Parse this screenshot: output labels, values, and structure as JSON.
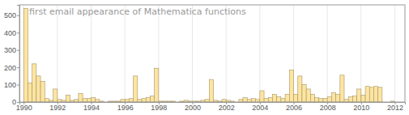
{
  "chart_data": {
    "type": "histogram",
    "title": "first email appearance of Mathematica functions",
    "bins": [
      1990,
      1990.25,
      1990.5,
      1990.75,
      1991,
      1991.25,
      1991.5,
      1991.75,
      1992,
      1992.25,
      1992.5,
      1992.75,
      1993,
      1993.25,
      1993.5,
      1993.75,
      1994,
      1994.25,
      1994.5,
      1994.75,
      1995,
      1995.25,
      1995.5,
      1995.75,
      1996,
      1996.25,
      1996.5,
      1996.75,
      1997,
      1997.25,
      1997.5,
      1997.75,
      1998,
      1998.25,
      1998.5,
      1998.75,
      1999,
      1999.25,
      1999.5,
      1999.75,
      2000,
      2000.25,
      2000.5,
      2000.75,
      2001,
      2001.25,
      2001.5,
      2001.75,
      2002,
      2002.25,
      2002.5,
      2002.75,
      2003,
      2003.25,
      2003.5,
      2003.75,
      2004,
      2004.25,
      2004.5,
      2004.75,
      2005,
      2005.25,
      2005.5,
      2005.75,
      2006,
      2006.25,
      2006.5,
      2006.75,
      2007,
      2007.25,
      2007.5,
      2007.75,
      2008,
      2008.25,
      2008.5,
      2008.75,
      2009,
      2009.25,
      2009.5,
      2009.75,
      2010,
      2010.25,
      2010.5,
      2010.75,
      2011,
      2011.25,
      2011.5,
      2011.75,
      2012
    ],
    "values": [
      540,
      110,
      220,
      150,
      120,
      20,
      10,
      75,
      15,
      10,
      40,
      10,
      15,
      50,
      20,
      20,
      25,
      15,
      5,
      0,
      5,
      5,
      5,
      15,
      15,
      20,
      150,
      15,
      20,
      25,
      35,
      195,
      5,
      5,
      5,
      5,
      0,
      5,
      10,
      5,
      5,
      5,
      10,
      15,
      130,
      10,
      5,
      15,
      10,
      5,
      0,
      15,
      25,
      15,
      20,
      15,
      65,
      20,
      25,
      45,
      30,
      20,
      45,
      185,
      45,
      150,
      100,
      75,
      45,
      25,
      20,
      20,
      30,
      55,
      45,
      155,
      15,
      30,
      35,
      75,
      40,
      90,
      85,
      90,
      85,
      0,
      0,
      5
    ],
    "color": "#fde4a0",
    "xlim": [
      1989.75,
      2012.6
    ],
    "xticks": [
      1990,
      1992,
      1994,
      1996,
      1998,
      2000,
      2002,
      2004,
      2006,
      2008,
      2010,
      2012
    ],
    "ylim": [
      0,
      560
    ],
    "yticks": [
      0,
      100,
      200,
      300,
      400,
      500
    ],
    "grid": true
  }
}
